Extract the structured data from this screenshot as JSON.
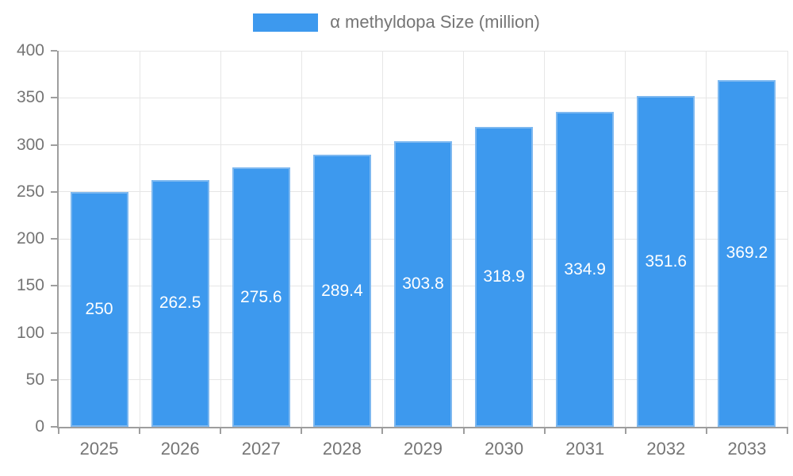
{
  "legend": {
    "label": "α methyldopa Size (million)"
  },
  "chart_data": {
    "type": "bar",
    "title": "",
    "xlabel": "",
    "ylabel": "",
    "categories": [
      "2025",
      "2026",
      "2027",
      "2028",
      "2029",
      "2030",
      "2031",
      "2032",
      "2033"
    ],
    "series": [
      {
        "name": "α methyldopa Size (million)",
        "values": [
          250,
          262.5,
          275.6,
          289.4,
          303.8,
          318.9,
          334.9,
          351.6,
          369.2
        ]
      }
    ],
    "bar_value_labels": [
      "250",
      "262.5",
      "275.6",
      "289.4",
      "303.8",
      "318.9",
      "334.9",
      "351.6",
      "369.2"
    ],
    "ylim": [
      0,
      400
    ],
    "yticks": [
      0,
      50,
      100,
      150,
      200,
      250,
      300,
      350,
      400
    ],
    "grid": true,
    "legend_position": "top",
    "colors": {
      "bar": "#3D99EE",
      "bar_border": "#7DB8F0",
      "bar_label": "#FFFFFF",
      "axis_line": "#9E9E9E",
      "grid_line": "#E6E6E6",
      "text": "#757575",
      "background": "#FFFFFF"
    }
  }
}
